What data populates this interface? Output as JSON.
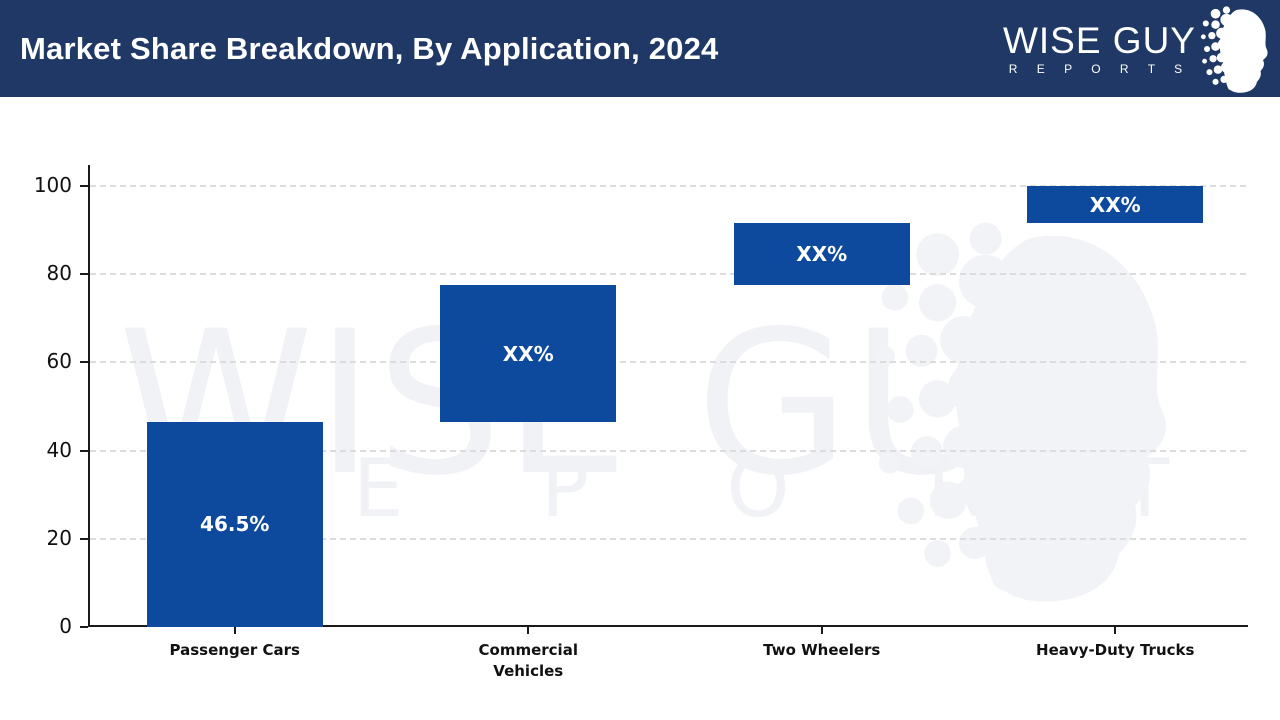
{
  "header": {
    "title": "Market Share Breakdown, By Application, 2024",
    "logo": {
      "wordmark": "WISE GUY",
      "subtitle": "R E P O R T S",
      "face_icon": "dotted-head-profile"
    }
  },
  "watermark": {
    "wordmark": "WISE GUY",
    "subtitle": "R E P O R T S",
    "face_icon": "dotted-head-profile"
  },
  "colors": {
    "header_bg": "#1f3865",
    "header_text": "#ffffff",
    "bar": "#0d4a9e",
    "bar_value_text": "#ffffff",
    "gridline": "#dcdcdc",
    "axis": "#1a1a1a",
    "watermark": "#f1f2f5"
  },
  "chart_data": {
    "type": "bar",
    "subtype": "waterfall",
    "title": "Market Share Breakdown, By Application, 2024",
    "xlabel": "",
    "ylabel": "",
    "ylim": [
      0,
      100
    ],
    "yticks": [
      0,
      20,
      40,
      60,
      80,
      100
    ],
    "grid": "horizontal-dashed",
    "legend": "none",
    "bar_color": "#0d4a9e",
    "bars": [
      {
        "category": "Passenger Cars",
        "label_lines": [
          "Passenger Cars"
        ],
        "start": 0,
        "end": 46.5,
        "value_label": "46.5%"
      },
      {
        "category": "Commercial Vehicles",
        "label_lines": [
          "Commercial",
          "Vehicles"
        ],
        "start": 46.5,
        "end": 77.5,
        "value_label": "XX%"
      },
      {
        "category": "Two Wheelers",
        "label_lines": [
          "Two Wheelers"
        ],
        "start": 77.5,
        "end": 91.5,
        "value_label": "XX%"
      },
      {
        "category": "Heavy-Duty Trucks",
        "label_lines": [
          "Heavy-Duty Trucks"
        ],
        "start": 91.5,
        "end": 100,
        "value_label": "XX%"
      }
    ]
  }
}
